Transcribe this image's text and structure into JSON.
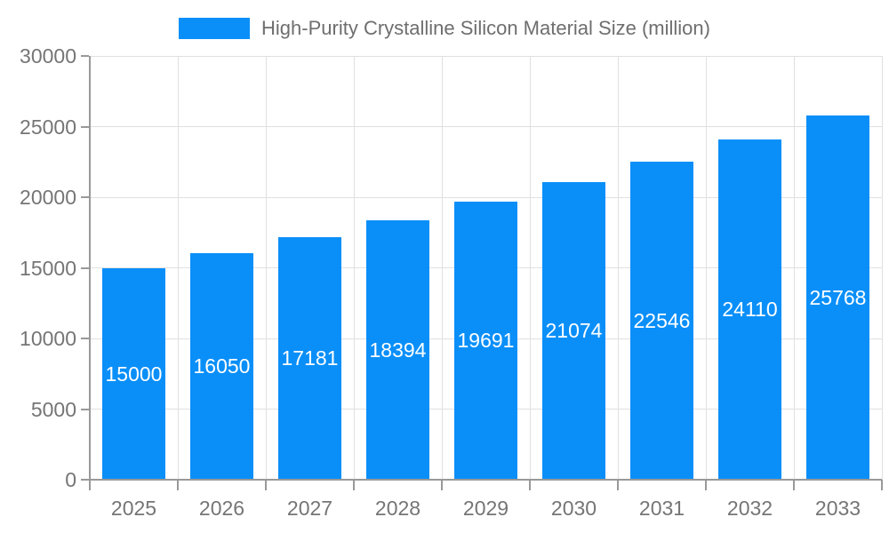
{
  "legend": {
    "label": "High-Purity Crystalline Silicon Material Size (million)"
  },
  "colors": {
    "bar": "#0a8ff9",
    "grid": "#e0e0e0",
    "axis": "#999999",
    "tick_text": "#757575",
    "legend_text": "#6e6e6e",
    "bar_label": "#ffffff",
    "background": "#ffffff"
  },
  "chart_data": {
    "type": "bar",
    "title": "High-Purity Crystalline Silicon Material Size (million)",
    "categories": [
      "2025",
      "2026",
      "2027",
      "2028",
      "2029",
      "2030",
      "2031",
      "2032",
      "2033"
    ],
    "values": [
      15000,
      16050,
      17181,
      18394,
      19691,
      21074,
      22546,
      24110,
      25768
    ],
    "bar_labels": [
      "15000",
      "16050",
      "17181",
      "18394",
      "19691",
      "21074",
      "22546",
      "24110",
      "25768"
    ],
    "xlabel": "",
    "ylabel": "",
    "ylim": [
      0,
      30000
    ],
    "ytick_interval": 5000,
    "yticks": [
      "0",
      "5000",
      "10000",
      "15000",
      "20000",
      "25000",
      "30000"
    ],
    "grid": true,
    "legend_position": "top-center",
    "bar_label_position": "inside-center"
  }
}
